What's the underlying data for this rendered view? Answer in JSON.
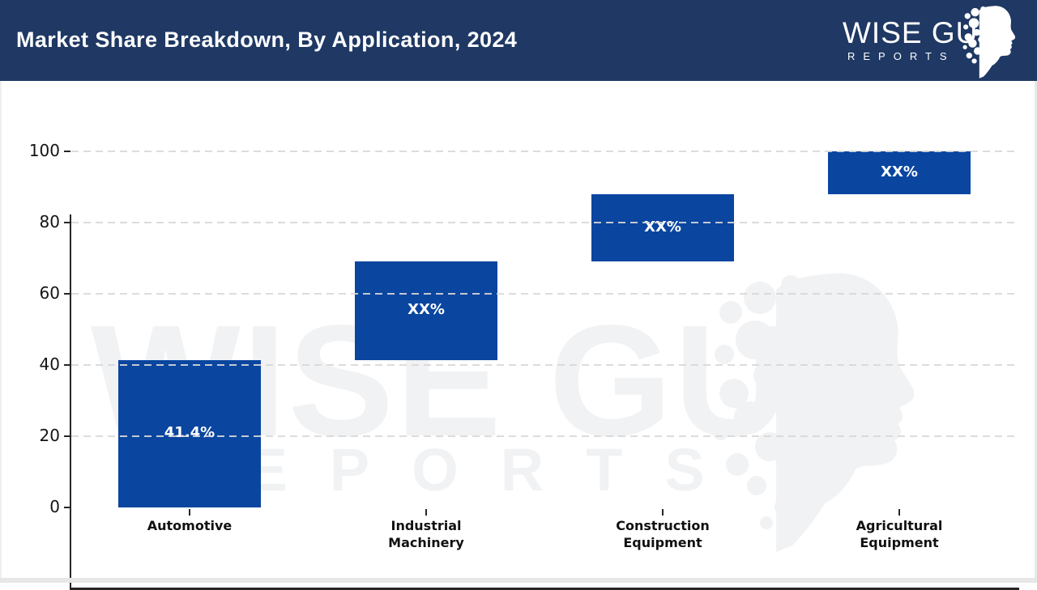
{
  "header": {
    "title": "Market Share Breakdown, By Application, 2024",
    "logo": {
      "line1": "WISE GUY",
      "line2": "REPORTS"
    }
  },
  "watermark": {
    "line1": "WISE GUY",
    "line2": "REPORTS"
  },
  "colors": {
    "header_bg": "#1f3864",
    "bar_blue": "#0a45a0",
    "value_label": "#ffffff",
    "axis": "#262626",
    "gridline": "#d8d8d8",
    "watermark": "#f1f2f4"
  },
  "chart_data": {
    "type": "bar",
    "subtype": "waterfall-breakdown",
    "title": "Market Share Breakdown, By Application, 2024",
    "categories": [
      "Automotive",
      "Industrial\nMachinery",
      "Construction\nEquipment",
      "Agricultural\nEquipment"
    ],
    "segments": [
      {
        "category": "Automotive",
        "base": 0,
        "top": 41.4,
        "value": 41.4,
        "label": "41.4%"
      },
      {
        "category": "Industrial Machinery",
        "base": 41.4,
        "top": 69.1,
        "value": 27.7,
        "label": "XX%"
      },
      {
        "category": "Construction Equipment",
        "base": 69.1,
        "top": 87.9,
        "value": 18.8,
        "label": "XX%"
      },
      {
        "category": "Agricultural Equipment",
        "base": 87.9,
        "top": 100,
        "value": 12.1,
        "label": "XX%"
      }
    ],
    "ylim": [
      0,
      100
    ],
    "yticks": [
      0,
      20,
      40,
      60,
      80,
      100
    ],
    "xlabel": "",
    "ylabel": "",
    "grid": "horizontal-dashed-above-bars",
    "legend": "none",
    "bar_color": "#0a45a0",
    "value_label_color": "#ffffff"
  }
}
